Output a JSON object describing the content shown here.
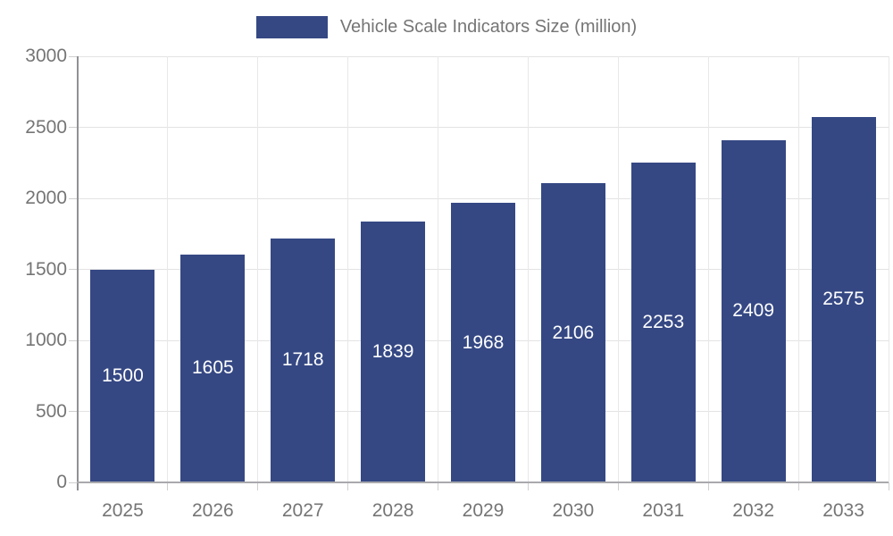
{
  "legend": {
    "label": "Vehicle Scale Indicators Size (million)",
    "swatch_color": "#354884"
  },
  "chart_data": {
    "type": "bar",
    "title": "Vehicle Scale Indicators Size (million)",
    "categories": [
      "2025",
      "2026",
      "2027",
      "2028",
      "2029",
      "2030",
      "2031",
      "2032",
      "2033"
    ],
    "series": [
      {
        "name": "Vehicle Scale Indicators Size (million)",
        "values": [
          1500,
          1605,
          1718,
          1839,
          1968,
          2106,
          2253,
          2409,
          2575
        ]
      }
    ],
    "xlabel": "",
    "ylabel": "",
    "ylim": [
      0,
      3000
    ],
    "yticks": [
      0,
      500,
      1000,
      1500,
      2000,
      2500,
      3000
    ],
    "grid": true,
    "legend_position": "top",
    "bar_color": "#354884",
    "value_label_color": "#ffffff",
    "axis_text_color": "#757575"
  }
}
